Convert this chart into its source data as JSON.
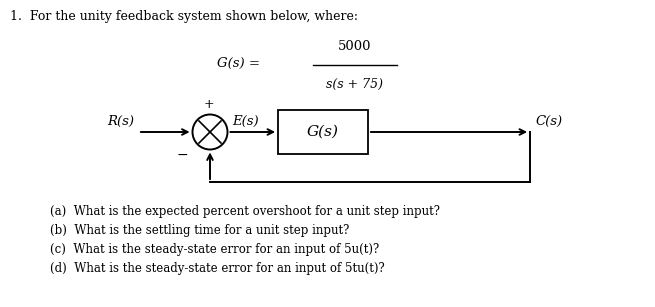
{
  "title_text": "1.  For the unity feedback system shown below, where:",
  "transfer_func_label": "G(s) =",
  "numerator": "5000",
  "denominator": "s(s + 75)",
  "Rs_label": "R(s)",
  "Es_label": "E(s)",
  "Gs_label": "G(s)",
  "Cs_label": "C(s)",
  "plus_label": "+",
  "minus_label": "−",
  "questions": [
    "(a)  What is the expected percent overshoot for a unit step input?",
    "(b)  What is the settling time for a unit step input?",
    "(c)  What is the steady-state error for an input of 5u(t)?",
    "(d)  What is the steady-state error for an input of 5tu(t)?"
  ],
  "bg_color": "#ffffff",
  "text_color": "#000000",
  "line_color": "#000000",
  "fontsize_title": 9.0,
  "fontsize_tf": 9.5,
  "fontsize_diagram": 9.5,
  "fontsize_questions": 8.5
}
